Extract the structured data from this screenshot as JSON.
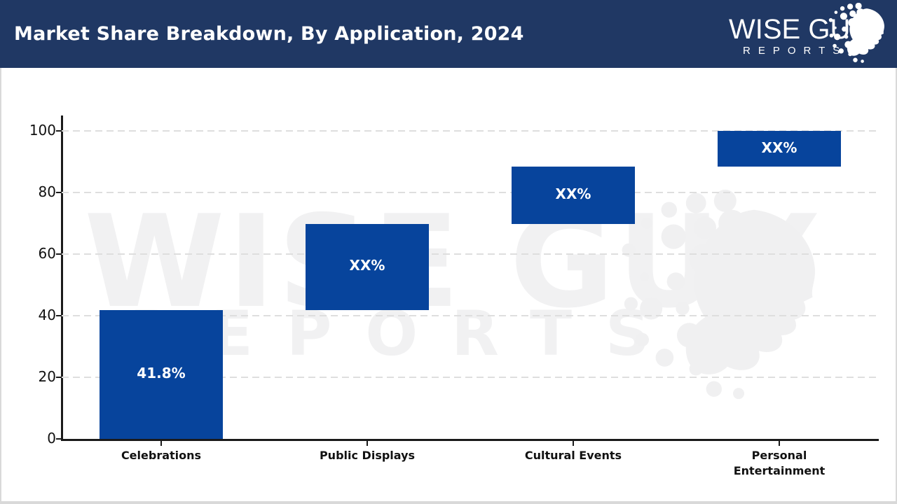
{
  "header": {
    "title": "Market Share Breakdown, By Application, 2024",
    "bg_color": "#203864"
  },
  "logo": {
    "line1": "WISE GUY",
    "line2": "REPORTS",
    "icon": "dotted-head-icon"
  },
  "watermark": {
    "line1": "WISE GUY",
    "line2": "REPORTS"
  },
  "chart_data": {
    "type": "bar",
    "subtype": "waterfall",
    "title": "Market Share Breakdown, By Application, 2024",
    "categories": [
      "Celebrations",
      "Public Displays",
      "Cultural Events",
      "Personal Entertainment"
    ],
    "segments": [
      {
        "category": "Celebrations",
        "start": 0,
        "end": 41.8,
        "label": "41.8%"
      },
      {
        "category": "Public Displays",
        "start": 41.8,
        "end": 69.8,
        "label": "XX%"
      },
      {
        "category": "Cultural Events",
        "start": 69.8,
        "end": 88.4,
        "label": "XX%"
      },
      {
        "category": "Personal Entertainment",
        "start": 88.4,
        "end": 100,
        "label": "XX%"
      }
    ],
    "ylim": [
      0,
      100
    ],
    "yticks": [
      0,
      20,
      40,
      60,
      80,
      100
    ],
    "xlabel": "",
    "ylabel": "",
    "grid": "dashed-horizontal",
    "legend": "none",
    "bar_color": "#07449c",
    "bar_label_color": "#ffffff"
  },
  "footer": {
    "bar_color": "#d9d9d9"
  }
}
